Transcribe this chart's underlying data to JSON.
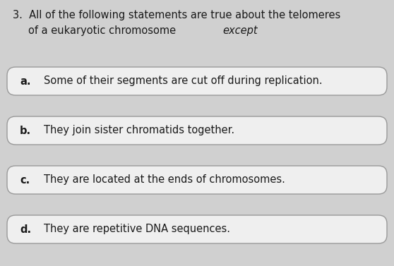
{
  "question_number": "3.",
  "question_line1": "All of the following statements are true about the telomeres",
  "question_line2_normal": "of a eukaryotic chromosome ",
  "question_line2_italic": "except",
  "options": [
    {
      "label": "a.",
      "text": "Some of their segments are cut off during replication."
    },
    {
      "label": "b.",
      "text": "They join sister chromatids together."
    },
    {
      "label": "c.",
      "text": "They are located at the ends of chromosomes."
    },
    {
      "label": "d.",
      "text": "They are repetitive DNA sequences."
    }
  ],
  "bg_color": "#d0d0d0",
  "box_fill_color": "#efefef",
  "box_edge_color": "#999999",
  "text_color": "#1a1a1a",
  "question_fontsize": 10.5,
  "option_fontsize": 10.5,
  "label_fontsize": 10.5
}
